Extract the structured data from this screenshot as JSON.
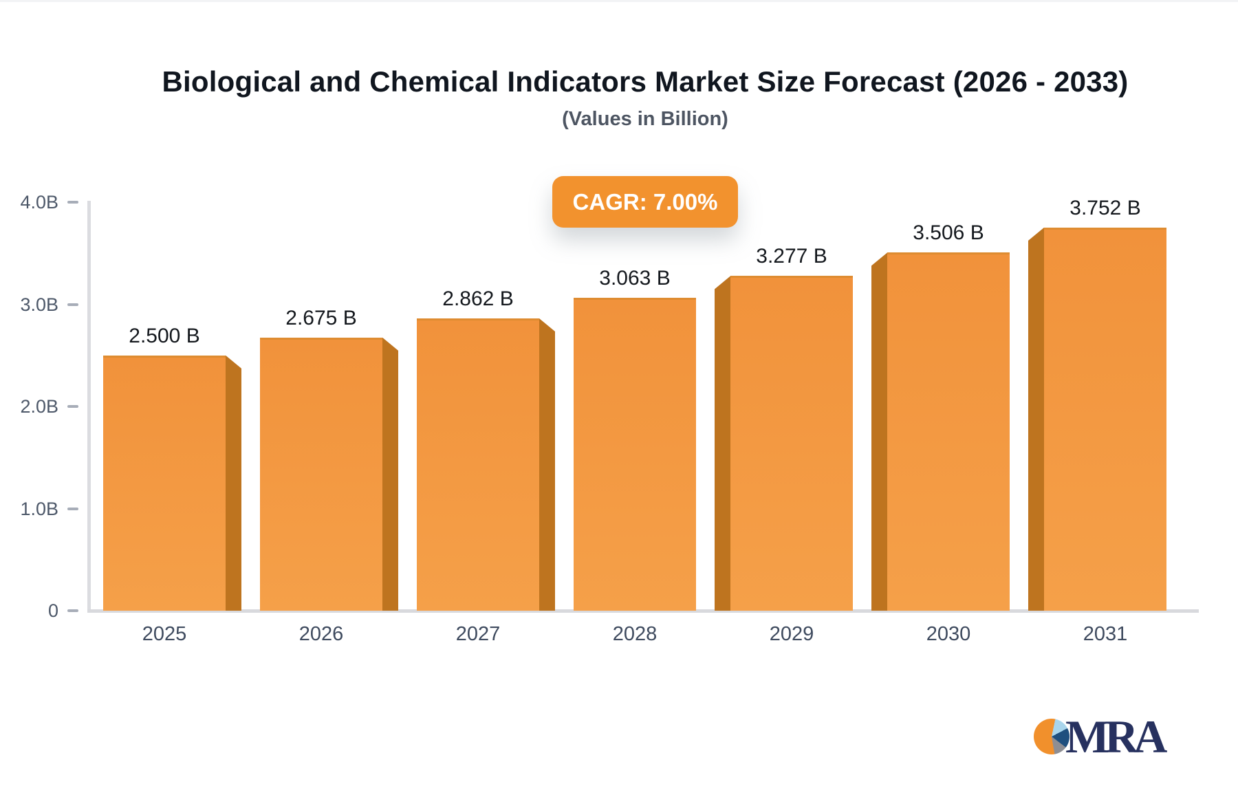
{
  "header": {
    "title": "Biological and Chemical Indicators Market Size Forecast (2026 - 2033)",
    "subtitle": "(Values in Billion)",
    "cagr_badge": "CAGR: 7.00%"
  },
  "logo": {
    "text": "MRA"
  },
  "colors": {
    "badge_bg": "#F2922E",
    "bar_face_top": "#F1923B",
    "bar_face_bottom": "#F5A049",
    "bar_side": "#BE741F",
    "axis_line": "#DBDCE0",
    "logo_navy": "#27315F",
    "logo_orange": "#F1902C",
    "logo_blue": "#A9D5EC",
    "logo_gray": "#8E8E93"
  },
  "chart_data": {
    "type": "bar",
    "title": "Biological and Chemical Indicators Market Size Forecast (2026 - 2033)",
    "subtitle": "(Values in Billion)",
    "annotation": "CAGR: 7.00%",
    "categories": [
      "2025",
      "2026",
      "2027",
      "2028",
      "2029",
      "2030",
      "2031"
    ],
    "values": [
      2.5,
      2.675,
      2.862,
      3.063,
      3.277,
      3.506,
      3.752
    ],
    "value_labels": [
      "2.500 B",
      "2.675 B",
      "2.862 B",
      "3.063 B",
      "3.277 B",
      "3.506 B",
      "3.752 B"
    ],
    "y_ticks": [
      "4.0B",
      "3.0B",
      "2.0B",
      "1.0B",
      "0"
    ],
    "ylim": [
      0,
      4.0
    ],
    "xlabel": "",
    "ylabel": "",
    "grid": false,
    "legend": false
  }
}
